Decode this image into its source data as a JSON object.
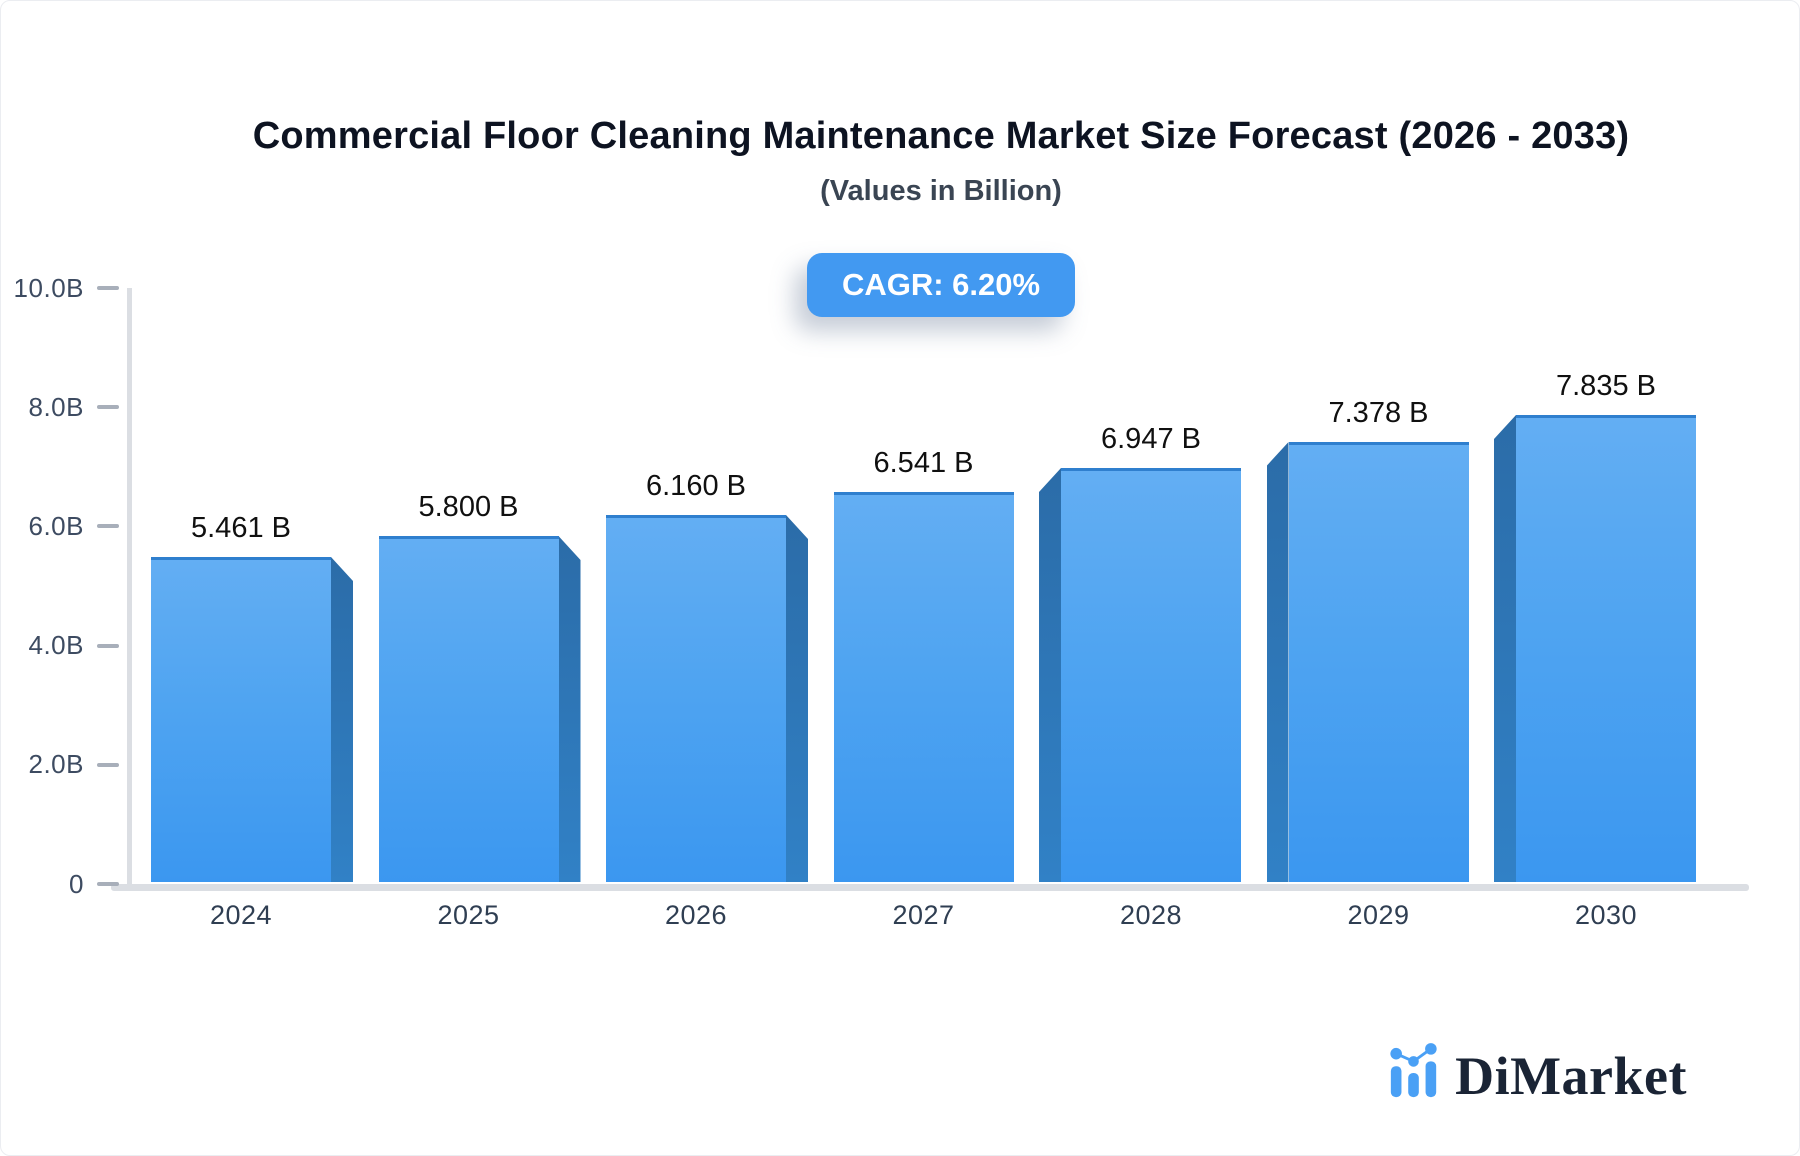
{
  "header": {
    "title": "Commercial Floor Cleaning Maintenance Market Size Forecast (2026 - 2033)",
    "subtitle": "(Values in Billion)",
    "cagr_badge": "CAGR: 6.20%"
  },
  "brand": {
    "wordmark": "DiMarket"
  },
  "colors": {
    "badge_bg": "#4299F1",
    "bar_top": "#63AEF3",
    "bar_bottom": "#3B97F0",
    "bar_side_top": "#2B6CA8",
    "bar_side_bottom": "#3181C6",
    "axis_line": "#DBDEE3",
    "tick_text": "#3D4B61",
    "value_text": "#101010",
    "logo_blue": "#4AA0F5",
    "logo_navy": "#1A2435"
  },
  "chart_data": {
    "type": "bar",
    "title": "Commercial Floor Cleaning Maintenance Market Size Forecast (2026 - 2033)",
    "subtitle": "(Values in Billion)",
    "cagr": "6.20%",
    "categories": [
      "2024",
      "2025",
      "2026",
      "2027",
      "2028",
      "2029",
      "2030"
    ],
    "values": [
      5.461,
      5.8,
      6.16,
      6.541,
      6.947,
      7.378,
      7.835
    ],
    "value_labels": [
      "5.461 B",
      "5.800 B",
      "6.160 B",
      "6.541 B",
      "6.947 B",
      "7.378 B",
      "7.835 B"
    ],
    "unit": "Billion",
    "ylim": [
      0,
      10
    ],
    "yticks": [
      {
        "label": "10.0B",
        "value": 10
      },
      {
        "label": "8.0B",
        "value": 8
      },
      {
        "label": "6.0B",
        "value": 6
      },
      {
        "label": "4.0B",
        "value": 4
      },
      {
        "label": "2.0B",
        "value": 2
      },
      {
        "label": "0",
        "value": 0
      }
    ],
    "grid": false,
    "legend": null,
    "bar_style": "3d-perspective-blue"
  }
}
